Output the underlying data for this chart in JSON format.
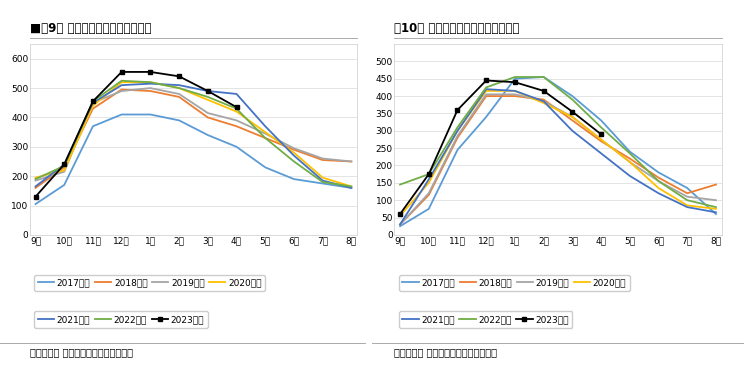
{
  "months": [
    "9月",
    "10月",
    "11月",
    "12月",
    "1月",
    "2月",
    "3月",
    "4月",
    "5月",
    "6月",
    "7月",
    "8月"
  ],
  "chart1_title": "■图9： 全国棉花商业库存（万吨）",
  "chart2_title": "图10： 新疆库棉花商业库存（万吨）",
  "source_text": "数据来源： 銀河期货、中国棉花信息网",
  "series_labels": [
    "2017年度",
    "2018年度",
    "2019年度",
    "2020年度",
    "2021年度",
    "2022年度",
    "2023年度"
  ],
  "series_colors": [
    "#5B9BD5",
    "#ED7D31",
    "#A5A5A5",
    "#FFC000",
    "#4472C4",
    "#70AD47",
    "#000000"
  ],
  "chart1_data": [
    [
      105,
      170,
      370,
      410,
      410,
      390,
      340,
      300,
      230,
      190,
      175,
      160
    ],
    [
      160,
      230,
      430,
      495,
      490,
      470,
      400,
      370,
      330,
      290,
      255,
      250
    ],
    [
      185,
      215,
      450,
      490,
      500,
      480,
      415,
      390,
      345,
      295,
      260,
      250
    ],
    [
      195,
      220,
      440,
      520,
      520,
      500,
      460,
      420,
      350,
      280,
      195,
      165
    ],
    [
      165,
      240,
      450,
      510,
      515,
      510,
      490,
      480,
      370,
      270,
      185,
      160
    ],
    [
      190,
      235,
      455,
      525,
      520,
      500,
      470,
      430,
      330,
      250,
      180,
      165
    ],
    [
      130,
      240,
      455,
      555,
      555,
      540,
      490,
      435,
      null,
      null,
      null,
      null
    ]
  ],
  "chart2_data": [
    [
      25,
      75,
      245,
      340,
      450,
      455,
      400,
      330,
      240,
      180,
      135,
      60
    ],
    [
      30,
      115,
      280,
      400,
      400,
      390,
      330,
      270,
      220,
      165,
      120,
      145
    ],
    [
      30,
      120,
      285,
      405,
      405,
      385,
      340,
      275,
      210,
      155,
      110,
      100
    ],
    [
      55,
      150,
      300,
      415,
      415,
      380,
      340,
      275,
      210,
      135,
      85,
      75
    ],
    [
      30,
      160,
      300,
      420,
      415,
      385,
      300,
      235,
      170,
      120,
      80,
      65
    ],
    [
      145,
      175,
      310,
      425,
      455,
      455,
      390,
      310,
      235,
      155,
      100,
      80
    ],
    [
      60,
      175,
      360,
      445,
      440,
      415,
      355,
      290,
      null,
      null,
      null,
      null
    ]
  ],
  "chart1_ylim": [
    0,
    650
  ],
  "chart1_yticks": [
    0,
    100,
    200,
    300,
    400,
    500,
    600
  ],
  "chart2_ylim": [
    0,
    550
  ],
  "chart2_yticks": [
    0,
    50,
    100,
    150,
    200,
    250,
    300,
    350,
    400,
    450,
    500
  ],
  "background_color": "#FFFFFF",
  "plot_bg_color": "#FFFFFF",
  "grid_color": "#D9D9D9",
  "title_fontsize": 8.5,
  "tick_fontsize": 6.5,
  "legend_fontsize": 6.5,
  "source_fontsize": 7
}
